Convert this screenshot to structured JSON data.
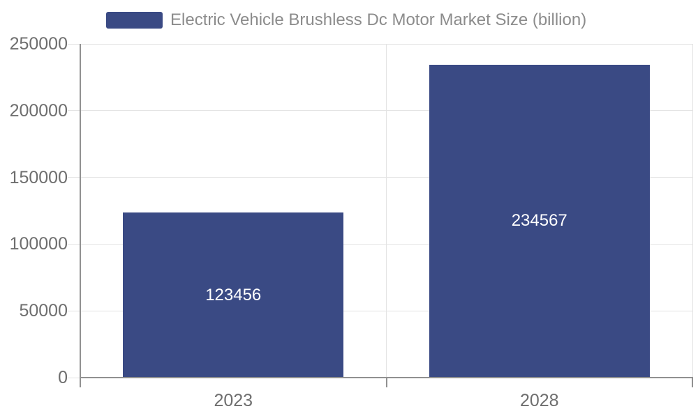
{
  "chart_data": {
    "type": "bar",
    "title": "Electric Vehicle Brushless Dc Motor Market Size (billion)",
    "categories": [
      "2023",
      "2028"
    ],
    "values": [
      123456,
      234567
    ],
    "bar_value_labels": [
      "123456",
      "234567"
    ],
    "ylim": [
      0,
      250000
    ],
    "yticks": [
      0,
      50000,
      100000,
      150000,
      200000,
      250000
    ],
    "ytick_labels": [
      "0",
      "50000",
      "100000",
      "150000",
      "200000",
      "250000"
    ],
    "grid": true,
    "legend": {
      "label": "Electric Vehicle Brushless Dc Motor Market Size (billion)",
      "position": "top"
    }
  },
  "colors": {
    "bar": "#3A4A84",
    "bar_label_text": "#FFFFFF",
    "grid_line": "#E3E3E3",
    "axis_line": "#919191",
    "tick_label_text": "#6E6E6E",
    "legend_text": "#8C8C8C",
    "background": "#FFFFFF"
  }
}
